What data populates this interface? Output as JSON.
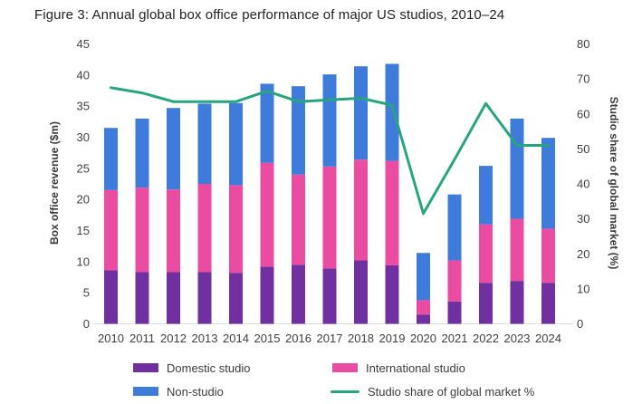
{
  "title": "Figure 3: Annual global box office performance of major US studios, 2010–24",
  "axes": {
    "left_label": "Box office revenue ($m)",
    "right_label": "Studio share of global market (%)"
  },
  "chart_data": {
    "type": "bar",
    "subtype": "stacked_bar_with_line",
    "title": "Figure 3: Annual global box office performance of major US studios, 2010–24",
    "categories": [
      "2010",
      "2011",
      "2012",
      "2013",
      "2014",
      "2015",
      "2016",
      "2017",
      "2018",
      "2019",
      "2020",
      "2021",
      "2022",
      "2023",
      "2024"
    ],
    "series": [
      {
        "name": "Domestic studio",
        "color": "#7030A0",
        "values": [
          8.6,
          8.3,
          8.3,
          8.3,
          8.2,
          9.2,
          9.5,
          8.9,
          10.2,
          9.4,
          1.5,
          3.6,
          6.6,
          6.9,
          6.6
        ]
      },
      {
        "name": "International studio",
        "color": "#E94CA1",
        "values": [
          12.9,
          13.6,
          13.3,
          14.2,
          14.1,
          16.7,
          14.5,
          16.4,
          16.2,
          16.8,
          2.3,
          6.6,
          9.4,
          10.0,
          8.7
        ]
      },
      {
        "name": "Non-studio",
        "color": "#3E7BDB",
        "values": [
          10.0,
          11.1,
          13.1,
          12.9,
          13.2,
          12.7,
          14.2,
          14.8,
          15.0,
          15.6,
          7.6,
          10.6,
          9.4,
          16.1,
          14.6
        ]
      }
    ],
    "stacked_totals": [
      31.5,
      33.0,
      34.7,
      35.4,
      35.5,
      38.6,
      38.2,
      40.1,
      41.4,
      41.8,
      11.4,
      20.8,
      25.4,
      33.0,
      29.9
    ],
    "line_series": {
      "name": "Studio share of global market %",
      "color": "#28A57E",
      "axis": "right",
      "values": [
        67.5,
        66.0,
        63.5,
        63.5,
        63.5,
        66.5,
        63.5,
        64.0,
        64.5,
        62.5,
        31.5,
        47.0,
        63.0,
        51.0,
        51.0
      ]
    },
    "xlabel": "",
    "ylabel": "Box office revenue ($m)",
    "ylabel_right": "Studio share of global market (%)",
    "ylim": [
      0,
      45
    ],
    "ytick_step": 5,
    "ylim_right": [
      0,
      80
    ],
    "ytick_step_right": 10,
    "grid": false,
    "legend_position": "bottom"
  },
  "legend": {
    "items": [
      {
        "label": "Domestic studio",
        "swatch": "rect",
        "color": "#7030A0"
      },
      {
        "label": "International studio",
        "swatch": "rect",
        "color": "#E94CA1"
      },
      {
        "label": "Non-studio",
        "swatch": "rect",
        "color": "#3E7BDB"
      },
      {
        "label": "Studio share of global market %",
        "swatch": "line",
        "color": "#28A57E"
      }
    ]
  },
  "colors": {
    "baseline": "#d9d9d9",
    "tick_text": "#404040",
    "title_text": "#222222"
  }
}
